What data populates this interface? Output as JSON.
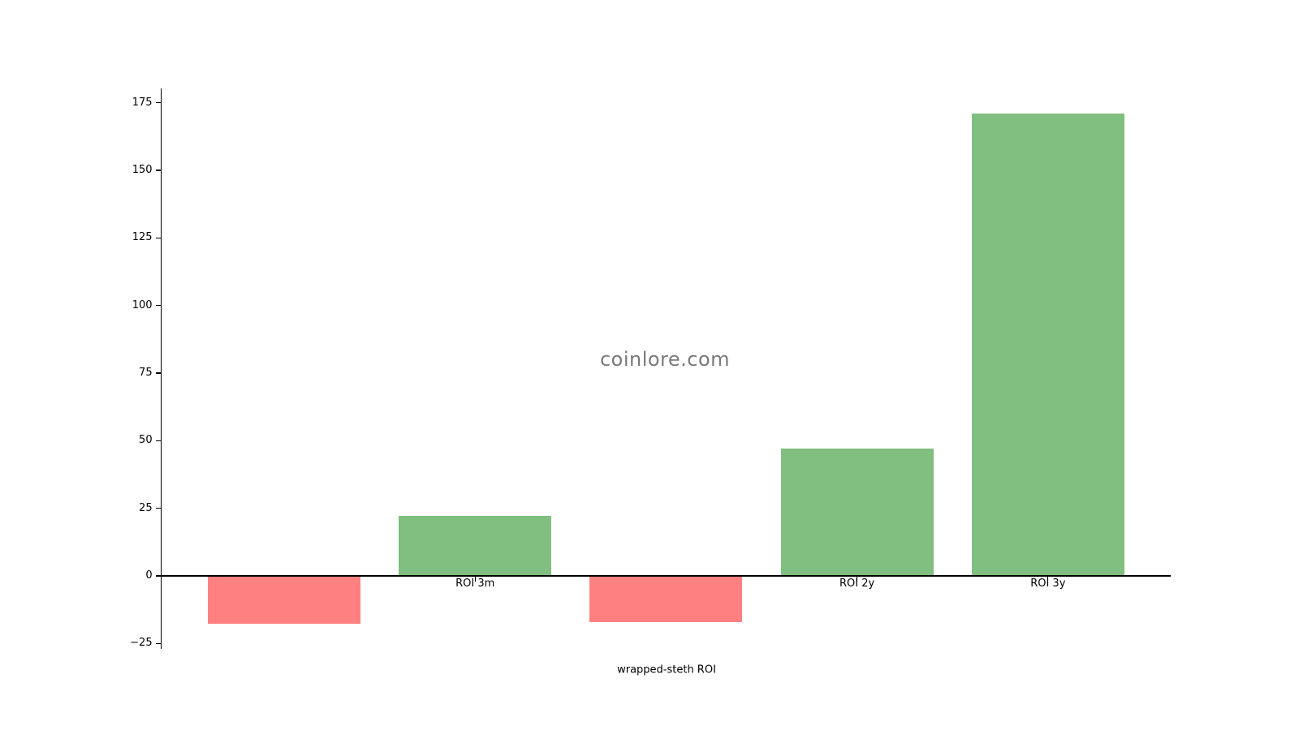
{
  "page": {
    "background": "#ffffff"
  },
  "chart_data": {
    "type": "bar",
    "title": "",
    "xlabel": "wrapped-steth ROI",
    "ylabel": "",
    "watermark": "coinlore.com",
    "categories": [
      "",
      "ROI 3m",
      "",
      "ROI 2y",
      "ROI 3y"
    ],
    "values": [
      -17.7,
      22.2,
      -17.2,
      47.2,
      171.0
    ],
    "bar_colors": [
      "#ff8080",
      "#80bf80",
      "#ff8080",
      "#80bf80",
      "#80bf80"
    ],
    "positive_color": "#80bf80",
    "negative_color": "#ff8080",
    "axis_color": "#000000",
    "tick_text_color": "#000000",
    "watermark_color": "#7a7a7a",
    "yticks": [
      {
        "value": 175,
        "label": "175"
      },
      {
        "value": 150,
        "label": "150"
      },
      {
        "value": 125,
        "label": "125"
      },
      {
        "value": 100,
        "label": "100"
      },
      {
        "value": 75,
        "label": "75"
      },
      {
        "value": 50,
        "label": "50"
      },
      {
        "value": 25,
        "label": "25"
      },
      {
        "value": 0,
        "label": "0"
      },
      {
        "value": -25,
        "label": "−25"
      }
    ],
    "ylim": [
      -27,
      180.3
    ],
    "xlim_units": [
      -0.64,
      4.64
    ],
    "grid": false,
    "legend": null
  }
}
